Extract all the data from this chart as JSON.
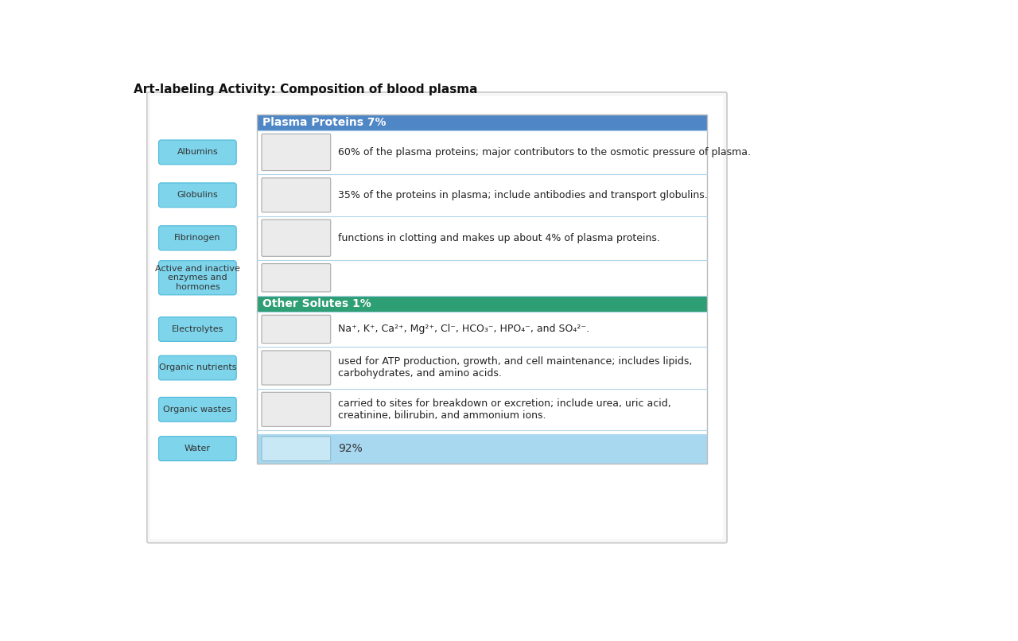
{
  "title": "Art-labeling Activity: Composition of blood plasma",
  "title_fontsize": 11,
  "background_color": "#ffffff",
  "left_labels": [
    "Albumins",
    "Globulins",
    "Fibrinogen",
    "Active and inactive\nenzymes and\nhormones",
    "Electrolytes",
    "Organic nutrients",
    "Organic wastes",
    "Water"
  ],
  "left_btn_color": "#7dd4eb",
  "left_btn_border_color": "#4ab8d8",
  "left_btn_text_color": "#333333",
  "section1_header": "Plasma Proteins 7%",
  "section1_header_bg": "#4f86c6",
  "section1_header_text_color": "#ffffff",
  "section2_header": "Other Solutes 1%",
  "section2_header_bg": "#2e9e74",
  "section2_header_text_color": "#ffffff",
  "plasma_rows": [
    "60% of the plasma proteins; major contributors to the osmotic pressure of plasma.",
    "35% of the proteins in plasma; include antibodies and transport globulins.",
    "functions in clotting and makes up about 4% of plasma proteins.",
    ""
  ],
  "solutes_rows": [
    "Na⁺, K⁺, Ca²⁺, Mg²⁺, Cl⁻, HCO₃⁻, HPO₄⁻, and SO₄²⁻.",
    "used for ATP production, growth, and cell maintenance; includes lipids,\ncarbohydrates, and amino acids.",
    "carried to sites for breakdown or excretion; include urea, uric acid,\ncreatinine, bilirubin, and ammonium ions."
  ],
  "water_row_text": "92%",
  "water_row_bg": "#a8d8f0",
  "row_box_color": "#ebebeb",
  "row_box_border": "#aaaaaa",
  "separator_color": "#b0d4e8",
  "text_color": "#222222",
  "text_fontsize": 9,
  "outer_bg": "#f7f7f7",
  "outer_border": "#c8c8c8"
}
